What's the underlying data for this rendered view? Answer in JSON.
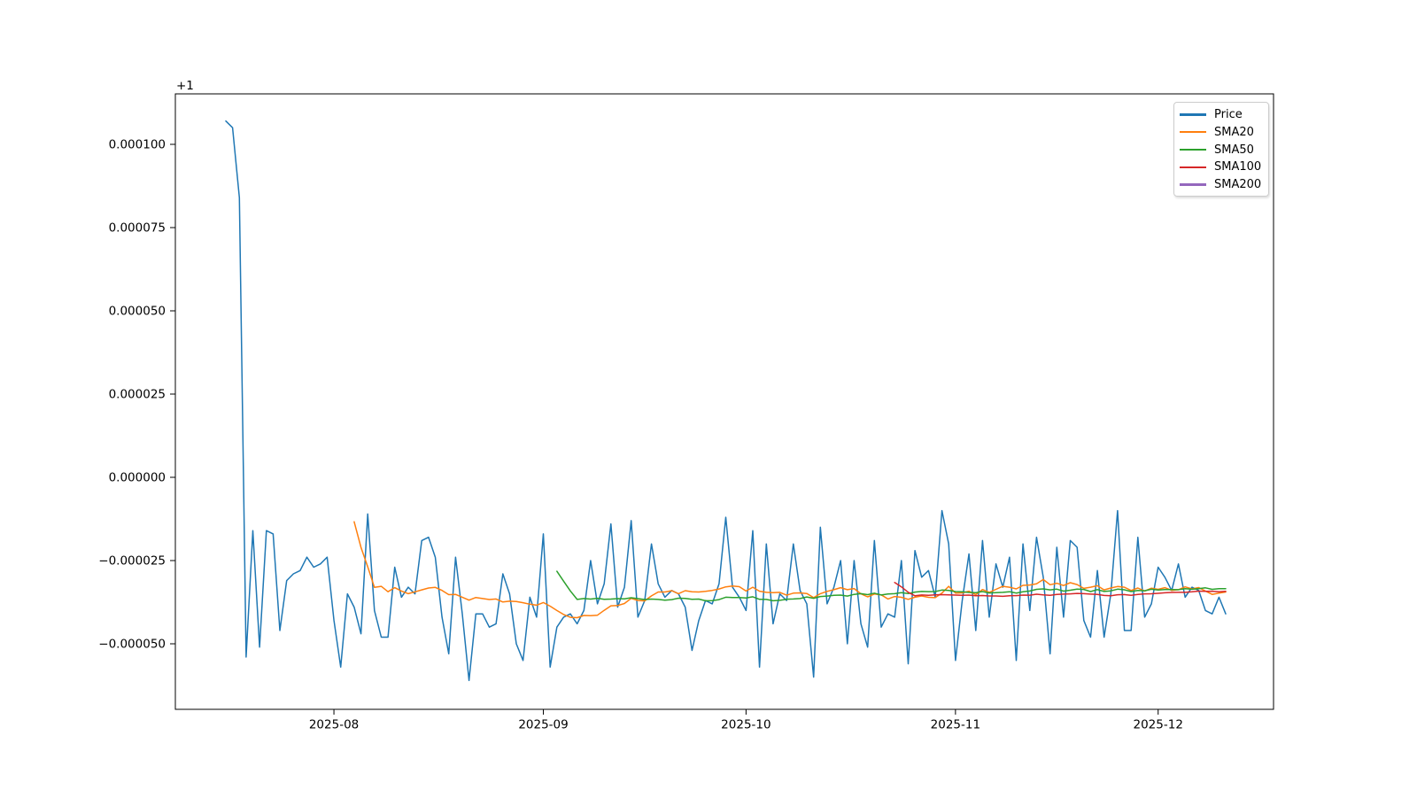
{
  "figure": {
    "background": "#ffffff"
  },
  "axes": {
    "offset_text": "+1",
    "frame_color": "#000000",
    "x_ticks": [
      {
        "label": "2025-08",
        "day": 16
      },
      {
        "label": "2025-09",
        "day": 47
      },
      {
        "label": "2025-10",
        "day": 77
      },
      {
        "label": "2025-11",
        "day": 108
      },
      {
        "label": "2025-12",
        "day": 138
      }
    ],
    "y_ticks": [
      {
        "label": "0.000100",
        "value_e6": 100
      },
      {
        "label": "0.000075",
        "value_e6": 75
      },
      {
        "label": "0.000050",
        "value_e6": 50
      },
      {
        "label": "0.000025",
        "value_e6": 25
      },
      {
        "label": "0.000000",
        "value_e6": 0
      },
      {
        "label": "−0.000025",
        "value_e6": -25
      },
      {
        "label": "−0.000050",
        "value_e6": -50
      }
    ]
  },
  "legend": {
    "items": [
      {
        "label": "Price",
        "color": "#1f77b4"
      },
      {
        "label": "SMA20",
        "color": "#ff7f0e"
      },
      {
        "label": "SMA50",
        "color": "#2ca02c"
      },
      {
        "label": "SMA100",
        "color": "#d62728"
      },
      {
        "label": "SMA200",
        "color": "#9467bd"
      }
    ]
  },
  "chart_data": {
    "type": "line",
    "title": "",
    "xlabel": "",
    "ylabel": "",
    "grid": false,
    "legend_position": "upper right",
    "x_tick_labels": [
      "2025-08",
      "2025-09",
      "2025-10",
      "2025-11",
      "2025-12"
    ],
    "y_tick_labels": [
      "0.000100",
      "0.000075",
      "0.000050",
      "0.000025",
      "0.000000",
      "−0.000025",
      "−0.000050"
    ],
    "y_offset": "+1",
    "y_offset_note": "y tick values are offsets from 1.0 (matplotlib offset notation)",
    "x_start_date": "2025-07-16",
    "x_end_date": "2025-12-11",
    "num_points": 149,
    "ylim_offset_e6": [
      -69.7,
      115.2
    ],
    "series": [
      {
        "name": "Price",
        "color": "#1f77b4",
        "window": 1,
        "values_e6_offset_from_1": [
          107,
          105,
          84,
          -54,
          -16,
          -51,
          -16,
          -17,
          -46,
          -31,
          -29,
          -28,
          -24,
          -27,
          -26,
          -24,
          -43,
          -57,
          -35,
          -39,
          -47,
          -11,
          -40,
          -48,
          -48,
          -27,
          -36,
          -33,
          -35,
          -19,
          -18,
          -24,
          -42,
          -53,
          -24,
          -41,
          -61,
          -41,
          -41,
          -45,
          -44,
          -29,
          -35,
          -50,
          -55,
          -36,
          -42,
          -17,
          -57,
          -45,
          -42,
          -41,
          -44,
          -40,
          -25,
          -38,
          -32,
          -14,
          -39,
          -33,
          -13,
          -42,
          -37,
          -20,
          -32,
          -36,
          -34,
          -35,
          -39,
          -52,
          -43,
          -37,
          -38,
          -32,
          -12,
          -33,
          -36,
          -40,
          -16,
          -57,
          -20,
          -44,
          -35,
          -37,
          -20,
          -34,
          -38,
          -60,
          -15,
          -38,
          -33,
          -25,
          -50,
          -25,
          -44,
          -51,
          -19,
          -45,
          -41,
          -42,
          -25,
          -56,
          -22,
          -30,
          -28,
          -36,
          -10,
          -20,
          -55,
          -37,
          -23,
          -46,
          -19,
          -42,
          -26,
          -33,
          -24,
          -55,
          -20,
          -40,
          -18,
          -30,
          -53,
          -21,
          -42,
          -19,
          -21,
          -43,
          -48,
          -28,
          -48,
          -35,
          -10,
          -46,
          -46,
          -18,
          -42,
          -38,
          -27,
          -30,
          -34,
          -26,
          -36,
          -33,
          -34,
          -40,
          -41,
          -36,
          -41
        ]
      },
      {
        "name": "SMA20",
        "color": "#ff7f0e",
        "window": 20,
        "derived_from": "Price"
      },
      {
        "name": "SMA50",
        "color": "#2ca02c",
        "window": 50,
        "derived_from": "Price"
      },
      {
        "name": "SMA100",
        "color": "#d62728",
        "window": 100,
        "derived_from": "Price"
      },
      {
        "name": "SMA200",
        "color": "#9467bd",
        "window": 200,
        "derived_from": "Price",
        "visible_points": 0
      }
    ]
  }
}
